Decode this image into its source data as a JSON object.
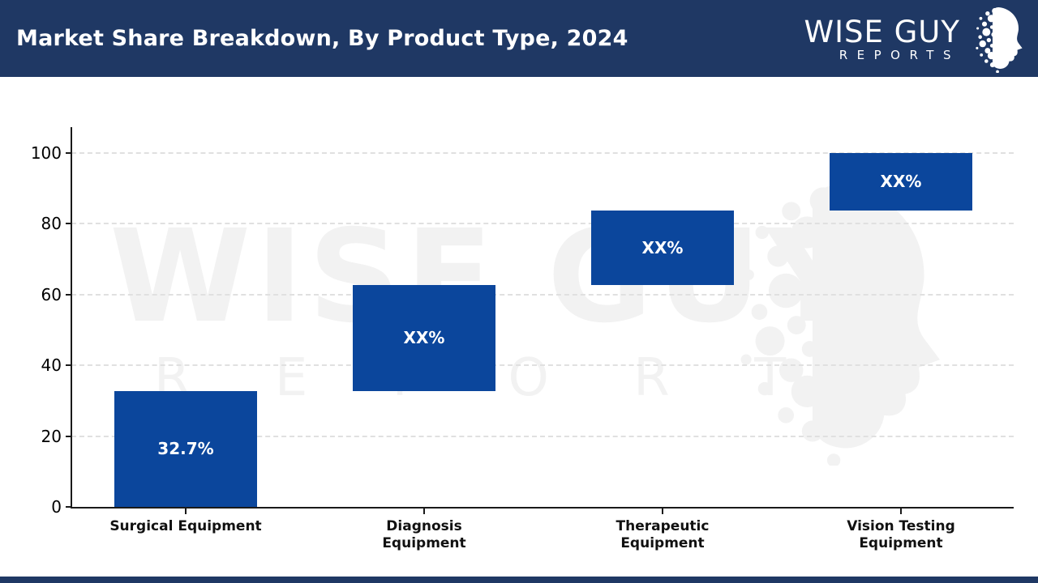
{
  "header": {
    "title": "Market Share Breakdown, By Product Type, 2024",
    "background_color": "#1F3864",
    "brand": {
      "line1": "WISE GUY",
      "line2": "REPORTS"
    }
  },
  "watermark": {
    "line1": "WISE GUY",
    "line2": "R E P O R T S"
  },
  "chart_data": {
    "type": "bar",
    "variant": "floating-waterfall",
    "title": "Market Share Breakdown, By Product Type, 2024",
    "categories": [
      "Surgical Equipment",
      "Diagnosis Equipment",
      "Therapeutic Equipment",
      "Vision Testing Equipment"
    ],
    "category_lines": [
      [
        "Surgical Equipment"
      ],
      [
        "Diagnosis",
        "Equipment"
      ],
      [
        "Therapeutic",
        "Equipment"
      ],
      [
        "Vision Testing",
        "Equipment"
      ]
    ],
    "segments": [
      {
        "category": "Surgical Equipment",
        "start": 0,
        "end": 32.7,
        "label": "32.7%"
      },
      {
        "category": "Diagnosis Equipment",
        "start": 32.7,
        "end": 62.7,
        "label": "XX%"
      },
      {
        "category": "Therapeutic Equipment",
        "start": 62.7,
        "end": 83.7,
        "label": "XX%"
      },
      {
        "category": "Vision Testing Equipment",
        "start": 83.7,
        "end": 100,
        "label": "XX%"
      }
    ],
    "yticks": [
      0,
      20,
      40,
      60,
      80,
      100
    ],
    "ylim": [
      0,
      105
    ],
    "xlabel": "",
    "ylabel": "",
    "legend": "none",
    "grid": "horizontal-dashed",
    "bar_color": "#0B469C",
    "bar_label_color": "#FFFFFF",
    "axis_color": "#1A1A1A",
    "gridline_color": "#E0E0E0"
  }
}
